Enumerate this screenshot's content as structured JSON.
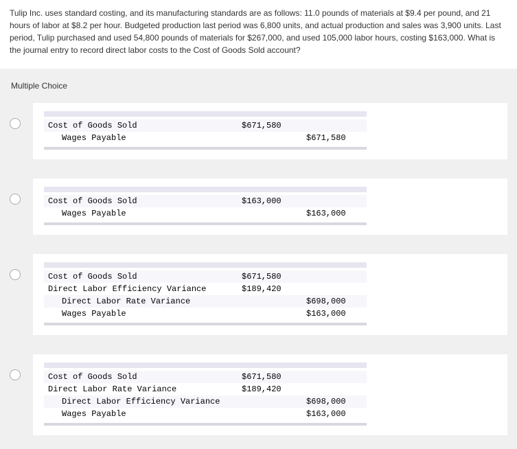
{
  "question": {
    "text": "Tulip Inc. uses standard costing, and its manufacturing standards are as follows: 11.0 pounds of materials at $9.4 per pound, and 21 hours of labor at $8.2 per hour. Budgeted production last period was 6,800 units, and actual production and sales was 3,900 units. Last period, Tulip purchased and used 54,800 pounds of materials for $267,000, and used 105,000 labor hours, costing $163,000. What is the journal entry to record direct labor costs to the Cost of Goods Sold account?"
  },
  "section_heading": "Multiple Choice",
  "styling": {
    "question_fontsize": 12,
    "mono_fontsize": 12,
    "page_bg": "#ffffff",
    "panel_bg": "#f0f0f0",
    "card_bg": "#ffffff",
    "bar_top_color": "#e6e5f0",
    "bar_bottom_color": "#d8d8e0",
    "alt_row_bg": "#f6f6fb",
    "radio_border": "#aaaaaa"
  },
  "choices": [
    {
      "lines": [
        {
          "indent": 0,
          "account": "Cost of Goods Sold",
          "debit": "$671,580",
          "credit": ""
        },
        {
          "indent": 1,
          "account": "Wages Payable",
          "debit": "",
          "credit": "$671,580"
        }
      ]
    },
    {
      "lines": [
        {
          "indent": 0,
          "account": "Cost of Goods Sold",
          "debit": "$163,000",
          "credit": ""
        },
        {
          "indent": 1,
          "account": "Wages Payable",
          "debit": "",
          "credit": "$163,000"
        }
      ]
    },
    {
      "lines": [
        {
          "indent": 0,
          "account": "Cost of Goods Sold",
          "debit": "$671,580",
          "credit": ""
        },
        {
          "indent": 0,
          "account": "Direct Labor Efficiency Variance",
          "debit": "$189,420",
          "credit": ""
        },
        {
          "indent": 1,
          "account": "Direct Labor Rate Variance",
          "debit": "",
          "credit": "$698,000"
        },
        {
          "indent": 1,
          "account": "Wages Payable",
          "debit": "",
          "credit": "$163,000"
        }
      ]
    },
    {
      "lines": [
        {
          "indent": 0,
          "account": "Cost of Goods Sold",
          "debit": "$671,580",
          "credit": ""
        },
        {
          "indent": 0,
          "account": "Direct Labor Rate Variance",
          "debit": "$189,420",
          "credit": ""
        },
        {
          "indent": 1,
          "account": "Direct Labor Efficiency Variance",
          "debit": "",
          "credit": "$698,000"
        },
        {
          "indent": 1,
          "account": "Wages Payable",
          "debit": "",
          "credit": "$163,000"
        }
      ]
    }
  ]
}
